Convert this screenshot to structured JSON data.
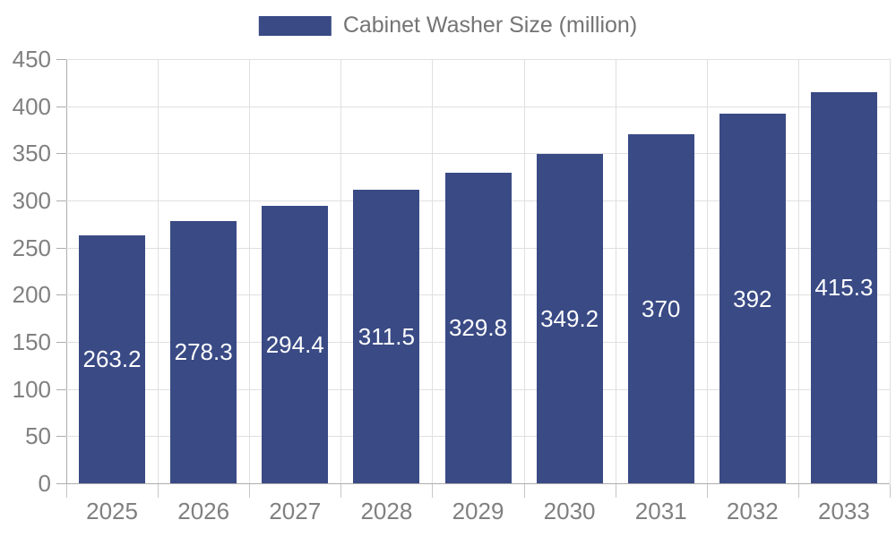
{
  "legend": {
    "label": "Cabinet Washer Size (million)"
  },
  "chart_data": {
    "type": "bar",
    "title": "Cabinet Washer Size (million)",
    "categories": [
      "2025",
      "2026",
      "2027",
      "2028",
      "2029",
      "2030",
      "2031",
      "2032",
      "2033"
    ],
    "values": [
      263.2,
      278.3,
      294.4,
      311.5,
      329.8,
      349.2,
      370,
      392,
      415.3
    ],
    "value_labels": [
      "263.2",
      "278.3",
      "294.4",
      "311.5",
      "329.8",
      "349.2",
      "370",
      "392",
      "415.3"
    ],
    "xlabel": "",
    "ylabel": "",
    "ylim": [
      0,
      450
    ],
    "yticks": [
      0,
      50,
      100,
      150,
      200,
      250,
      300,
      350,
      400,
      450
    ],
    "grid": true,
    "legend_position": "top-center",
    "value_label_position": "center-of-bar",
    "colors": {
      "bar": "#394A85",
      "value_label": "#FFFFFF",
      "axis_label": "#808080",
      "legend_text": "#747474",
      "gridline": "#E0E0E0",
      "axis_line": "#ADADAD",
      "background": "#FFFFFF"
    }
  }
}
